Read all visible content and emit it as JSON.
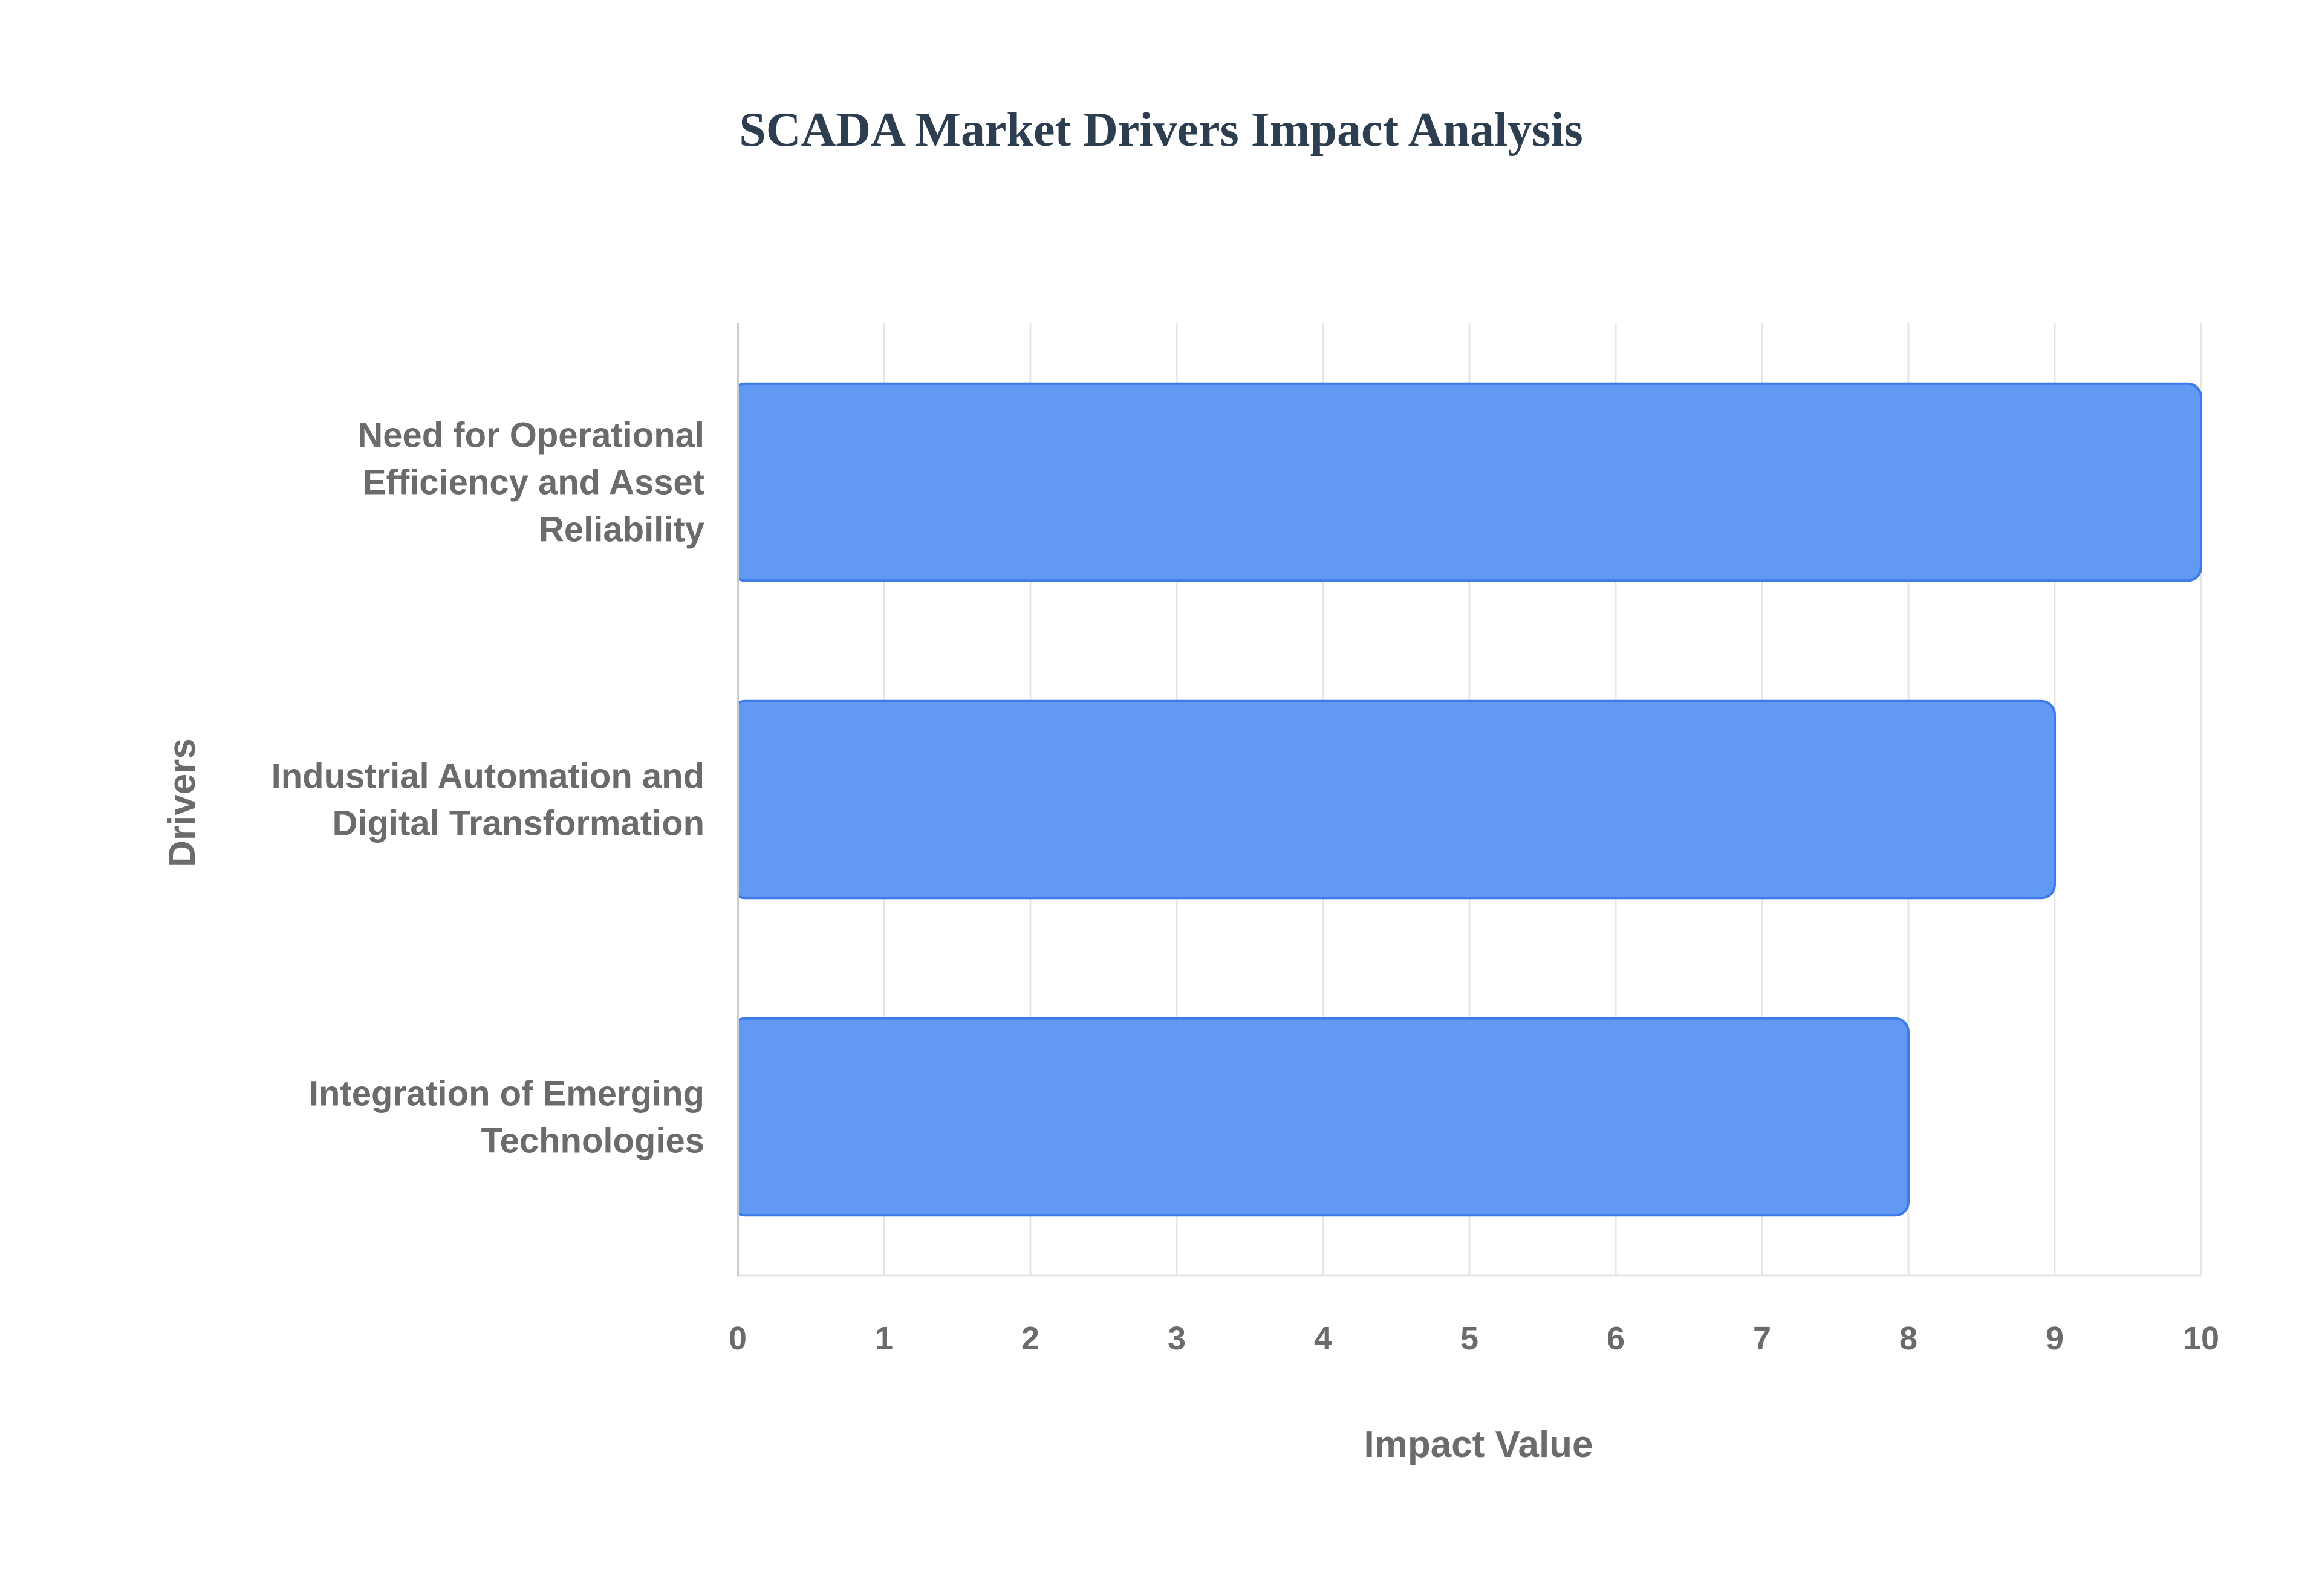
{
  "chart_data": {
    "type": "bar",
    "orientation": "horizontal",
    "title": "SCADA Market Drivers Impact Analysis",
    "xlabel": "Impact Value",
    "ylabel": "Drivers",
    "xlim": [
      0,
      10
    ],
    "ticks": [
      "0",
      "1",
      "2",
      "3",
      "4",
      "5",
      "6",
      "7",
      "8",
      "9",
      "10"
    ],
    "grid": true,
    "categories": [
      [
        "Need for Operational",
        "Efficiency and Asset",
        "Reliability"
      ],
      [
        "Industrial Automation and",
        "Digital Transformation"
      ],
      [
        "Integration of Emerging",
        "Technologies"
      ]
    ],
    "values": [
      10,
      9,
      8
    ],
    "bar_color": "#6199f5",
    "bar_edge_color": "#3d7ce8"
  }
}
